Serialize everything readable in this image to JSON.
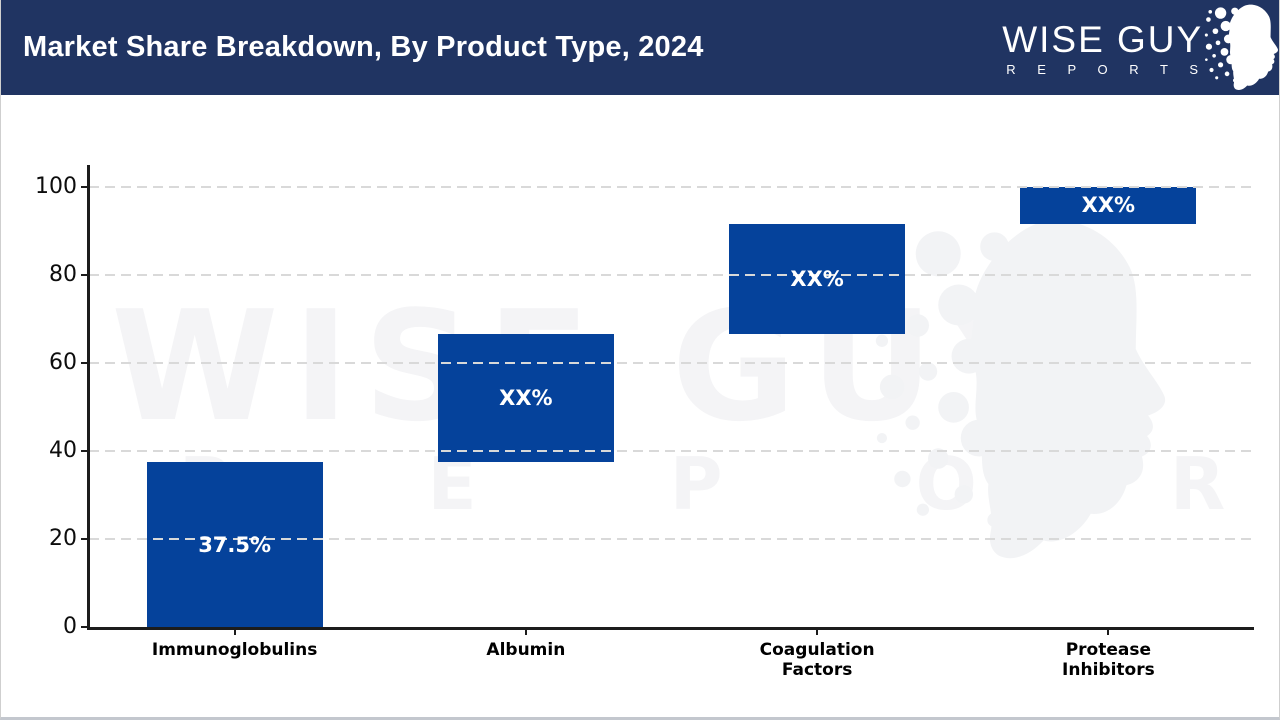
{
  "header": {
    "title": "Market Share Breakdown, By Product Type, 2024",
    "bg_color": "#203462",
    "brand_line1": "WISE GUY",
    "brand_line2": "R E P O R T S"
  },
  "watermark": {
    "line1": "WISE GUY",
    "line2": "R E P O R T S"
  },
  "chart_data": {
    "type": "bar",
    "subtype": "floating stacked percentage (waterfall-style), segments sum to 100%",
    "title": "Market Share Breakdown, By Product Type, 2024",
    "categories": [
      "Immunoglobulins",
      "Albumin",
      "Coagulation\nFactors",
      "Protease\nInhibitors"
    ],
    "segments": [
      {
        "category": "Immunoglobulins",
        "start": 0,
        "end": 37.5,
        "label": "37.5%"
      },
      {
        "category": "Albumin",
        "start": 37.5,
        "end": 66.7,
        "label": "XX%"
      },
      {
        "category": "Coagulation\nFactors",
        "start": 66.7,
        "end": 91.7,
        "label": "XX%"
      },
      {
        "category": "Protease\nInhibitors",
        "start": 91.7,
        "end": 100,
        "label": "XX%"
      }
    ],
    "yticks": [
      0,
      20,
      40,
      60,
      80,
      100
    ],
    "ylim": [
      0,
      105
    ],
    "grid": true,
    "grid_style": "dashed horizontal, drawn above bars",
    "bar_color": "#05429b",
    "bar_label_color": "#ffffff",
    "axis_color": "#1c1c1c",
    "grid_color": "#d9d9d9",
    "legend": "none"
  }
}
